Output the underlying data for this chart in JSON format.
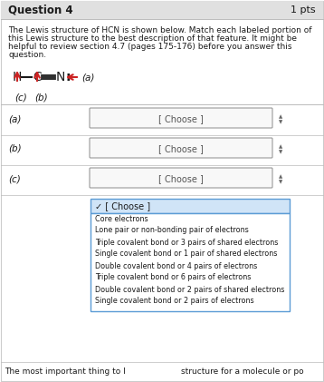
{
  "title": "Question 4",
  "pts": "1 pts",
  "body_lines": [
    "The Lewis structure of HCN is shown below. Match each labeled portion of",
    "this Lewis structure to the best description of that feature. It might be",
    "helpful to review section 4.7 (pages 175-176) before you answer this",
    "question."
  ],
  "labels": [
    "(a)",
    "(b)",
    "(c)"
  ],
  "choose_text": "[ Choose ]",
  "dropdown_items": [
    "✓ [ Choose ]",
    "Core electrons",
    "Lone pair or non-bonding pair of electrons",
    "Triple covalent bond or 3 pairs of shared electrons",
    "Single covalent bond or 1 pair of shared electrons",
    "Double covalent bond or 4 pairs of electrons",
    "Triple covalent bond or 6 pairs of electrons",
    "Double covalent bond or 2 pairs of shared electrons",
    "Single covalent bond or 2 pairs of electrons"
  ],
  "bottom_text1": "The most important thing to l",
  "bottom_text2": "structure for a molecule or po",
  "bg_color": "#f0f0f0",
  "white": "#ffffff",
  "dropdown_bg": "#d0e4f7",
  "dropdown_border": "#5b9bd5",
  "text_color": "#1a1a1a",
  "arrow_color": "#cc2222",
  "box_border": "#999999",
  "choose_box_bg": "#f8f8f8",
  "header_bg": "#e0e0e0",
  "sep_color": "#bbbbbb"
}
